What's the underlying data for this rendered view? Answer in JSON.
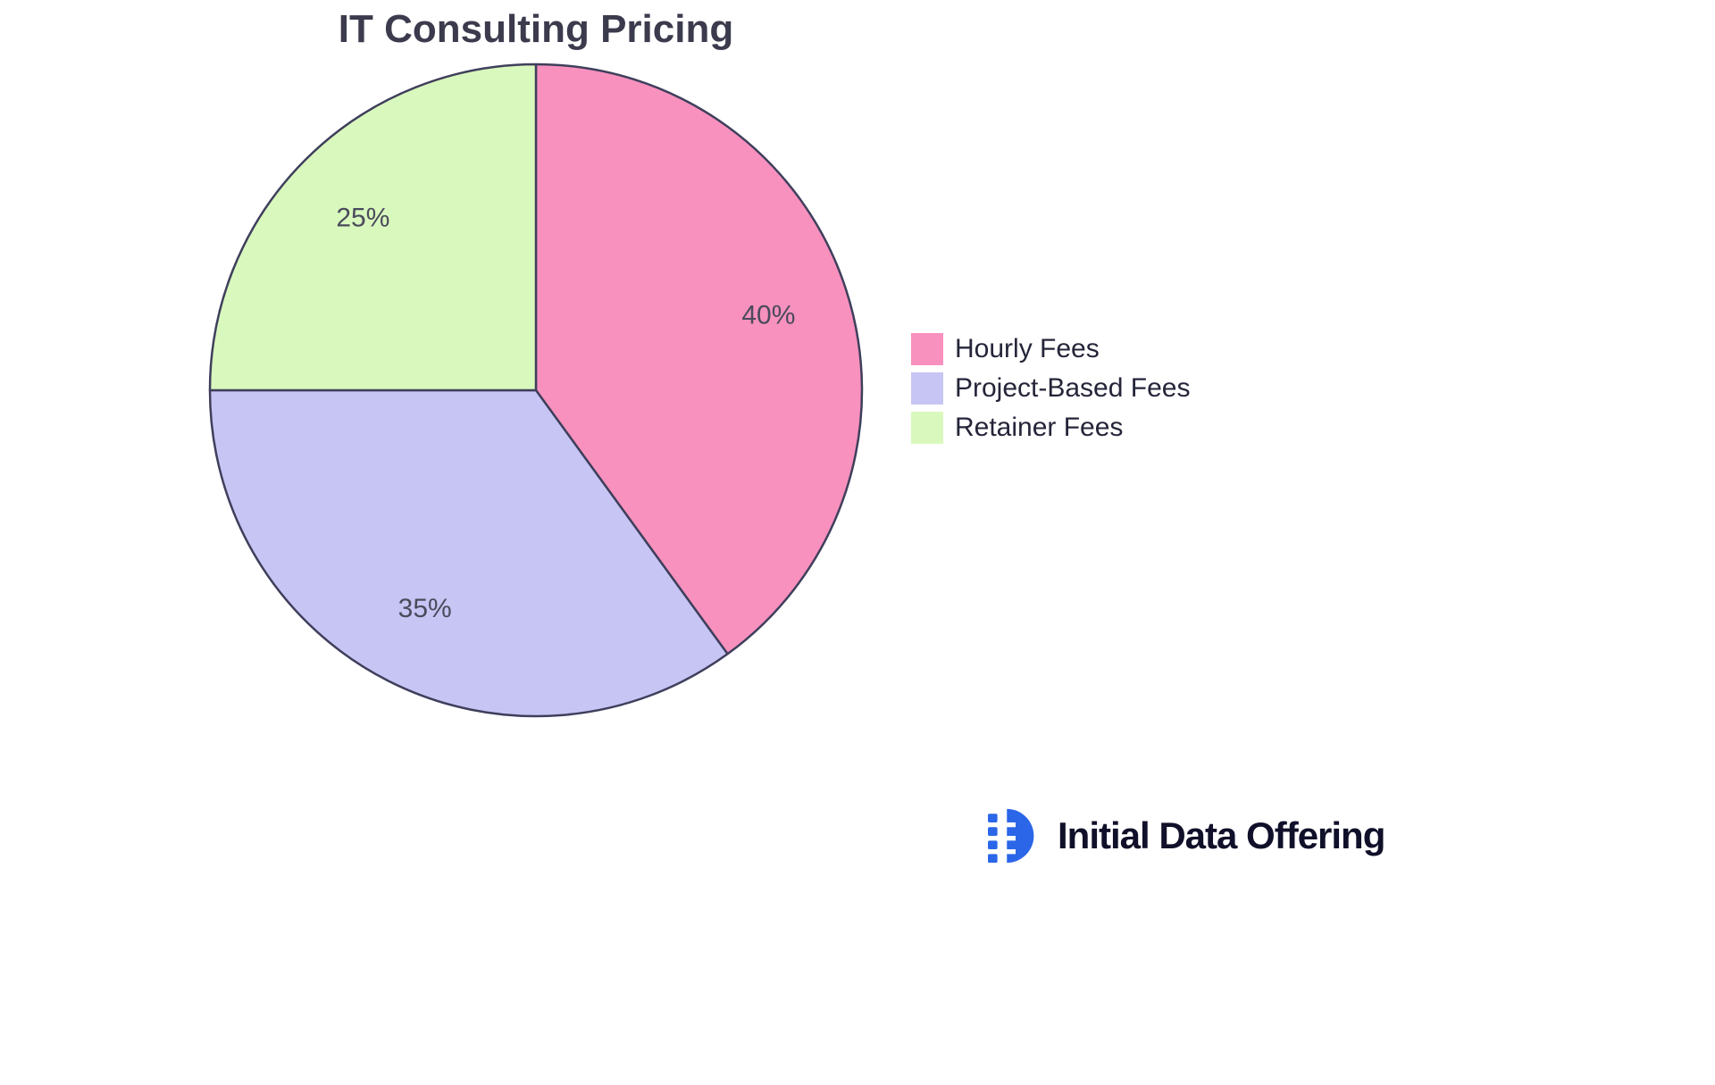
{
  "chart_data": {
    "type": "pie",
    "title": "IT Consulting Pricing",
    "slices": [
      {
        "label": "Hourly Fees",
        "value": 40,
        "pct_label": "40%",
        "color": "#F891BE"
      },
      {
        "label": "Project-Based Fees",
        "value": 35,
        "pct_label": "35%",
        "color": "#C7C5F4"
      },
      {
        "label": "Retainer Fees",
        "value": 25,
        "pct_label": "25%",
        "color": "#D9F8BD"
      }
    ],
    "stroke_color": "#3F3F5C",
    "label_color": "#4A4A5C",
    "start_angle": "top",
    "direction": "clockwise",
    "legend_position": "right",
    "grid": false
  },
  "logo": {
    "text": "Initial Data Offering",
    "icon_color": "#2B66E8"
  }
}
